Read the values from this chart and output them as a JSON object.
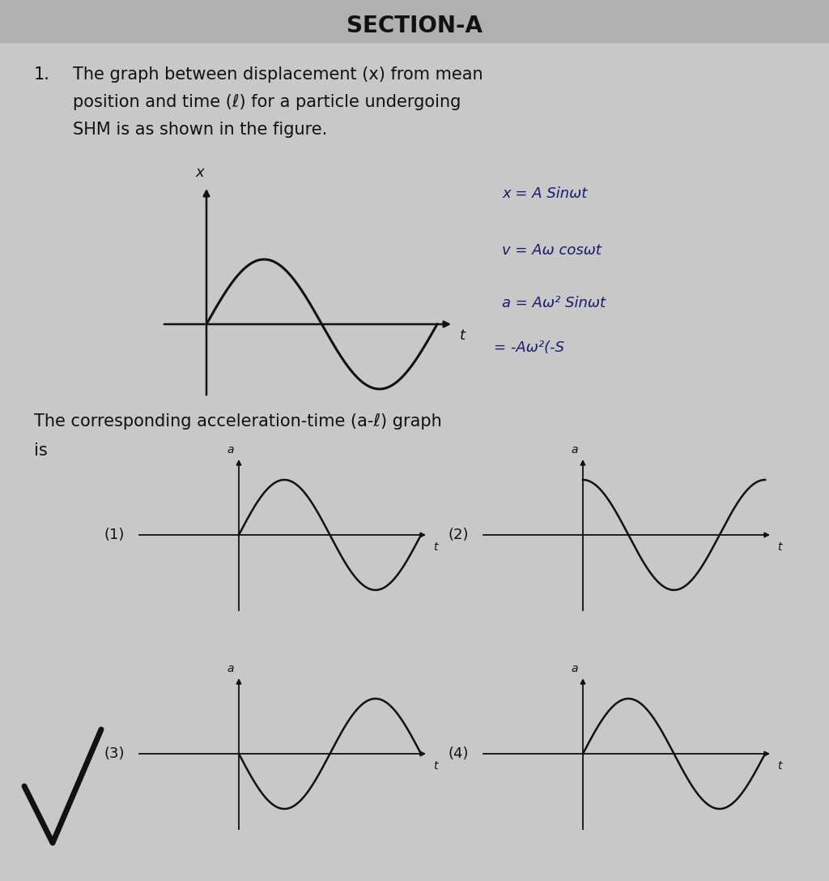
{
  "bg_color": "#c8c8c8",
  "title": "SECTION-A",
  "question_text_line1": "The graph between displacement (x) from mean",
  "question_text_line2": "position and time (ℓ) for a particle undergoing",
  "question_text_line3": "SHM is as shown in the figure.",
  "question_number": "1.",
  "sub_text_line1": "The corresponding acceleration-time (a-ℓ) graph",
  "sub_text_line2": "is",
  "text_color": "#111111",
  "curve_color": "#111111",
  "axis_color": "#111111",
  "hw_color": "#1a1a6e",
  "checkmark_color": "#111111",
  "header_bg": "#b0b0b0"
}
